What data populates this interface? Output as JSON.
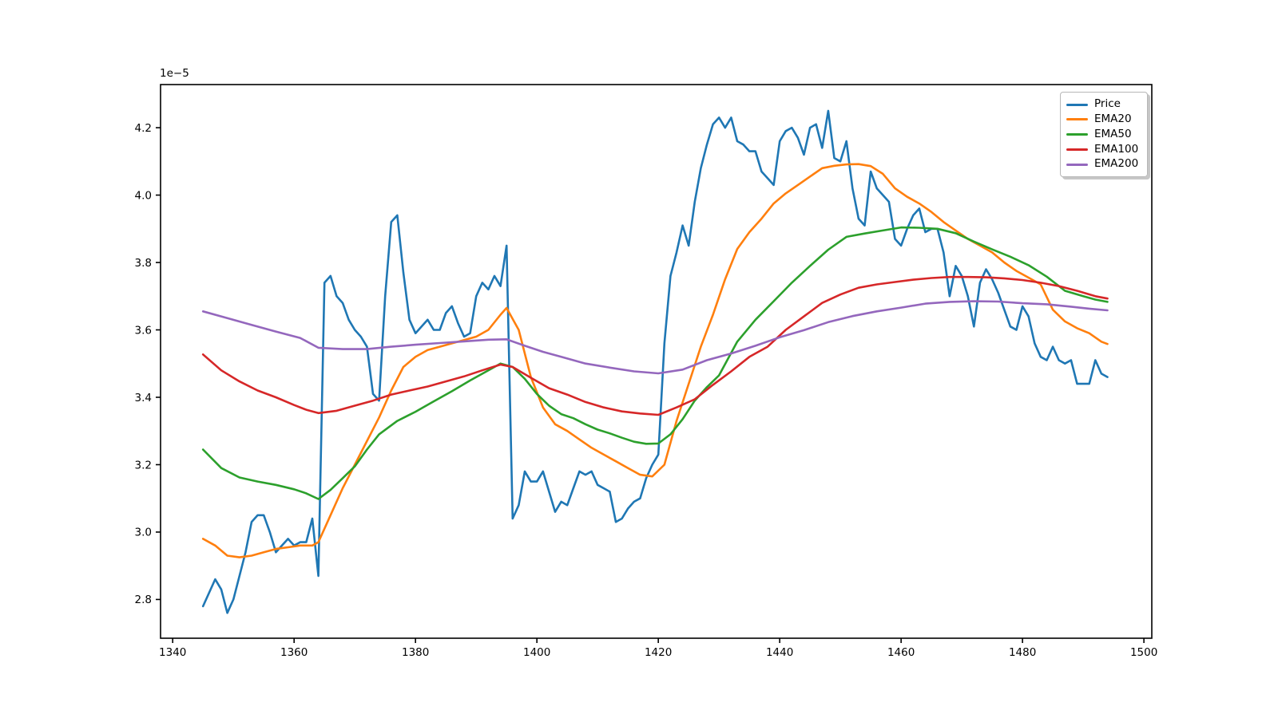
{
  "figure": {
    "background": "#ffffff"
  },
  "chart_data": {
    "type": "line",
    "title": "",
    "xlabel": "",
    "ylabel": "",
    "y_offset_label": "1e−5",
    "y_unit_multiplier": 1e-05,
    "grid": false,
    "legend_position": "upper right",
    "xlim": [
      1338,
      1501.3
    ],
    "ylim": [
      2.685,
      4.328
    ],
    "x_ticks": [
      1340,
      1360,
      1380,
      1400,
      1420,
      1440,
      1460,
      1480,
      1500
    ],
    "y_ticks": [
      2.8,
      3.0,
      3.2,
      3.4,
      3.6,
      3.8,
      4.0,
      4.2
    ],
    "series": [
      {
        "name": "Price",
        "color": "#1f77b4",
        "x_start": 1345,
        "x_step": 1,
        "y": [
          2.78,
          2.82,
          2.86,
          2.83,
          2.76,
          2.8,
          2.87,
          2.94,
          3.03,
          3.05,
          3.05,
          3.0,
          2.94,
          2.96,
          2.98,
          2.96,
          2.97,
          2.97,
          3.04,
          2.87,
          3.74,
          3.76,
          3.7,
          3.68,
          3.63,
          3.6,
          3.58,
          3.55,
          3.41,
          3.39,
          3.7,
          3.92,
          3.94,
          3.77,
          3.63,
          3.59,
          3.61,
          3.63,
          3.6,
          3.6,
          3.65,
          3.67,
          3.62,
          3.58,
          3.59,
          3.7,
          3.74,
          3.72,
          3.76,
          3.73,
          3.85,
          3.04,
          3.08,
          3.18,
          3.15,
          3.15,
          3.18,
          3.12,
          3.06,
          3.09,
          3.08,
          3.13,
          3.18,
          3.17,
          3.18,
          3.14,
          3.13,
          3.12,
          3.03,
          3.04,
          3.07,
          3.09,
          3.1,
          3.16,
          3.2,
          3.23,
          3.56,
          3.76,
          3.83,
          3.91,
          3.85,
          3.98,
          4.08,
          4.15,
          4.21,
          4.23,
          4.2,
          4.23,
          4.16,
          4.15,
          4.13,
          4.13,
          4.07,
          4.05,
          4.03,
          4.16,
          4.19,
          4.2,
          4.17,
          4.12,
          4.2,
          4.21,
          4.14,
          4.25,
          4.11,
          4.1,
          4.16,
          4.02,
          3.93,
          3.91,
          4.07,
          4.02,
          4.0,
          3.98,
          3.87,
          3.85,
          3.9,
          3.94,
          3.96,
          3.89,
          3.9,
          3.9,
          3.83,
          3.7,
          3.79,
          3.76,
          3.7,
          3.61,
          3.74,
          3.78,
          3.75,
          3.71,
          3.66,
          3.61,
          3.6,
          3.67,
          3.64,
          3.56,
          3.52,
          3.51,
          3.55,
          3.51,
          3.5,
          3.51,
          3.44,
          3.44,
          3.44,
          3.51,
          3.47,
          3.46
        ]
      },
      {
        "name": "EMA20",
        "color": "#ff7f0e",
        "x": [
          1345,
          1347,
          1349,
          1351,
          1353,
          1355,
          1357,
          1359,
          1361,
          1363,
          1364,
          1366,
          1368,
          1370,
          1372,
          1374,
          1376,
          1378,
          1380,
          1382,
          1384,
          1386,
          1388,
          1390,
          1392,
          1394,
          1395,
          1397,
          1399,
          1401,
          1403,
          1405,
          1407,
          1409,
          1411,
          1413,
          1415,
          1417,
          1419,
          1421,
          1423,
          1425,
          1427,
          1429,
          1431,
          1433,
          1435,
          1437,
          1439,
          1441,
          1443,
          1445,
          1447,
          1449,
          1451,
          1453,
          1455,
          1457,
          1459,
          1461,
          1463,
          1465,
          1467,
          1469,
          1471,
          1473,
          1475,
          1477,
          1479,
          1481,
          1483,
          1485,
          1487,
          1489,
          1491,
          1493,
          1494
        ],
        "y": [
          2.98,
          2.96,
          2.93,
          2.925,
          2.93,
          2.94,
          2.95,
          2.955,
          2.96,
          2.96,
          2.97,
          3.05,
          3.13,
          3.2,
          3.27,
          3.34,
          3.42,
          3.49,
          3.52,
          3.54,
          3.55,
          3.56,
          3.57,
          3.58,
          3.6,
          3.645,
          3.665,
          3.6,
          3.46,
          3.37,
          3.32,
          3.3,
          3.275,
          3.25,
          3.23,
          3.21,
          3.19,
          3.17,
          3.165,
          3.2,
          3.33,
          3.44,
          3.55,
          3.645,
          3.75,
          3.84,
          3.89,
          3.93,
          3.975,
          4.005,
          4.03,
          4.055,
          4.08,
          4.087,
          4.091,
          4.092,
          4.086,
          4.063,
          4.02,
          3.995,
          3.975,
          3.95,
          3.92,
          3.895,
          3.87,
          3.85,
          3.83,
          3.8,
          3.775,
          3.755,
          3.735,
          3.66,
          3.625,
          3.605,
          3.59,
          3.565,
          3.558
        ]
      },
      {
        "name": "EMA50",
        "color": "#2ca02c",
        "x": [
          1345,
          1348,
          1351,
          1354,
          1357,
          1360,
          1362,
          1364,
          1366,
          1368,
          1370,
          1372,
          1374,
          1377,
          1380,
          1383,
          1386,
          1389,
          1392,
          1394,
          1396,
          1398,
          1400,
          1402,
          1404,
          1406,
          1408,
          1410,
          1412,
          1414,
          1416,
          1418,
          1420,
          1422,
          1424,
          1426,
          1428,
          1430,
          1433,
          1436,
          1439,
          1442,
          1445,
          1448,
          1451,
          1454,
          1457,
          1460,
          1463,
          1466,
          1469,
          1472,
          1475,
          1478,
          1481,
          1484,
          1487,
          1490,
          1492,
          1494
        ],
        "y": [
          3.245,
          3.19,
          3.162,
          3.15,
          3.14,
          3.127,
          3.115,
          3.098,
          3.125,
          3.16,
          3.195,
          3.245,
          3.29,
          3.33,
          3.357,
          3.388,
          3.418,
          3.45,
          3.48,
          3.5,
          3.49,
          3.455,
          3.41,
          3.375,
          3.35,
          3.338,
          3.32,
          3.304,
          3.293,
          3.28,
          3.268,
          3.262,
          3.263,
          3.29,
          3.335,
          3.39,
          3.43,
          3.465,
          3.565,
          3.63,
          3.685,
          3.74,
          3.79,
          3.838,
          3.876,
          3.886,
          3.895,
          3.904,
          3.903,
          3.9,
          3.887,
          3.862,
          3.839,
          3.817,
          3.792,
          3.758,
          3.716,
          3.7,
          3.69,
          3.683
        ]
      },
      {
        "name": "EMA100",
        "color": "#d62728",
        "x": [
          1345,
          1348,
          1351,
          1354,
          1357,
          1360,
          1362,
          1364,
          1367,
          1370,
          1373,
          1376,
          1379,
          1382,
          1385,
          1388,
          1391,
          1394,
          1396,
          1399,
          1402,
          1405,
          1408,
          1411,
          1414,
          1417,
          1420,
          1423,
          1426,
          1429,
          1432,
          1435,
          1438,
          1441,
          1444,
          1447,
          1450,
          1453,
          1456,
          1459,
          1462,
          1465,
          1468,
          1471,
          1474,
          1477,
          1480,
          1483,
          1486,
          1489,
          1492,
          1494
        ],
        "y": [
          3.527,
          3.48,
          3.447,
          3.42,
          3.4,
          3.377,
          3.363,
          3.353,
          3.36,
          3.375,
          3.39,
          3.408,
          3.42,
          3.432,
          3.447,
          3.462,
          3.48,
          3.497,
          3.49,
          3.458,
          3.427,
          3.408,
          3.386,
          3.37,
          3.358,
          3.352,
          3.348,
          3.37,
          3.394,
          3.437,
          3.477,
          3.52,
          3.55,
          3.6,
          3.64,
          3.68,
          3.705,
          3.725,
          3.735,
          3.742,
          3.749,
          3.754,
          3.757,
          3.757,
          3.756,
          3.753,
          3.748,
          3.74,
          3.73,
          3.716,
          3.7,
          3.693
        ]
      },
      {
        "name": "EMA200",
        "color": "#9467bd",
        "x": [
          1345,
          1349,
          1353,
          1357,
          1361,
          1364,
          1368,
          1372,
          1376,
          1380,
          1384,
          1388,
          1392,
          1395,
          1398,
          1401,
          1404,
          1408,
          1412,
          1416,
          1420,
          1424,
          1428,
          1432,
          1436,
          1440,
          1444,
          1448,
          1452,
          1456,
          1460,
          1464,
          1468,
          1472,
          1476,
          1480,
          1484,
          1488,
          1491,
          1494
        ],
        "y": [
          3.655,
          3.635,
          3.615,
          3.595,
          3.576,
          3.547,
          3.543,
          3.543,
          3.55,
          3.556,
          3.561,
          3.566,
          3.571,
          3.572,
          3.553,
          3.535,
          3.52,
          3.5,
          3.488,
          3.477,
          3.471,
          3.482,
          3.51,
          3.53,
          3.553,
          3.578,
          3.599,
          3.623,
          3.641,
          3.655,
          3.666,
          3.678,
          3.683,
          3.685,
          3.684,
          3.679,
          3.676,
          3.669,
          3.663,
          3.658
        ]
      }
    ]
  }
}
